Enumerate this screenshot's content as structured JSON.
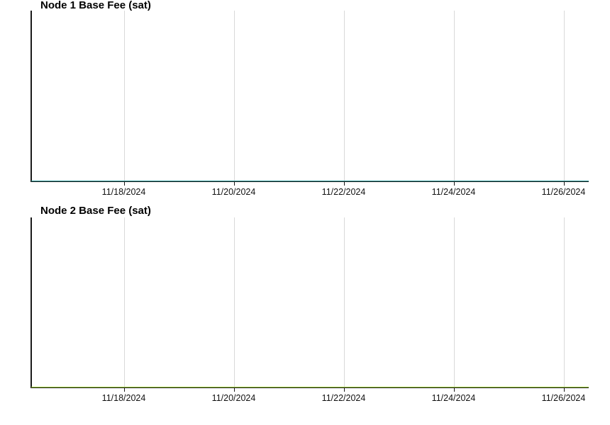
{
  "page": {
    "background_color": "#ffffff",
    "axis_color": "#1a1a1a",
    "gridline_color": "#d9d9d9",
    "tick_label_color": "#111111"
  },
  "chart_data": [
    {
      "type": "line",
      "title": "Node 1 Base Fee (sat)",
      "x": [
        "11/18/2024",
        "11/20/2024",
        "11/22/2024",
        "11/24/2024",
        "11/26/2024"
      ],
      "series": [
        {
          "name": "Node 1 Base Fee (sat)",
          "values": [
            0,
            0,
            0,
            0,
            0
          ],
          "color": "#2b9b9b"
        }
      ],
      "xlabel": "",
      "ylabel": "",
      "y_tick_labels": [],
      "grid": "vertical-only",
      "legend": "none"
    },
    {
      "type": "line",
      "title": "Node 2 Base Fee (sat)",
      "x": [
        "11/18/2024",
        "11/20/2024",
        "11/22/2024",
        "11/24/2024",
        "11/26/2024"
      ],
      "series": [
        {
          "name": "Node 2 Base Fee (sat)",
          "values": [
            0,
            0,
            0,
            0,
            0
          ],
          "color": "#9acd32"
        }
      ],
      "xlabel": "",
      "ylabel": "",
      "y_tick_labels": [],
      "grid": "vertical-only",
      "legend": "none"
    }
  ]
}
